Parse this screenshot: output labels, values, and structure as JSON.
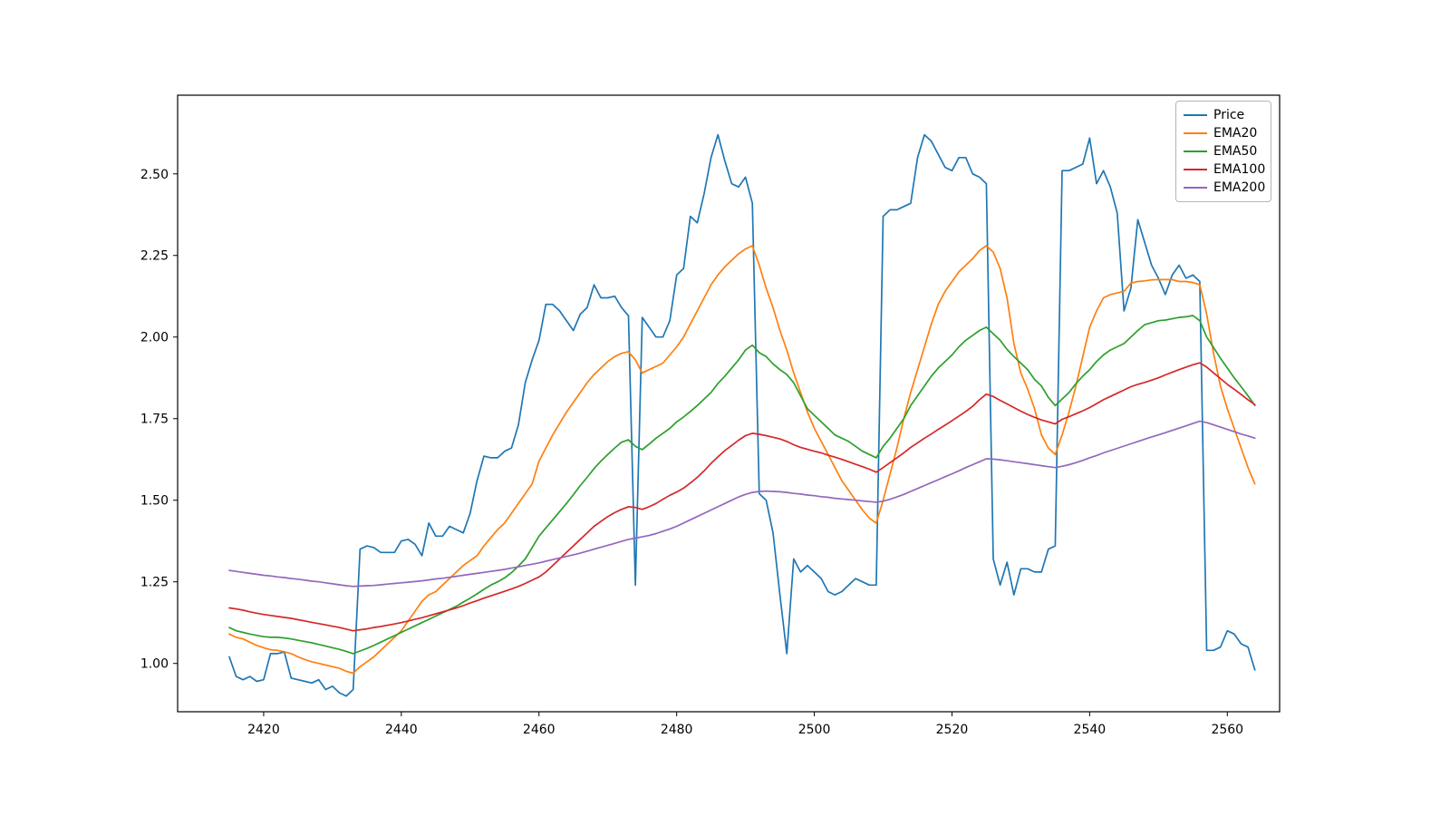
{
  "chart_data": {
    "type": "line",
    "title": "",
    "xlabel": "",
    "ylabel": "",
    "grid": false,
    "background": "#ffffff",
    "legend_position": "upper right",
    "xlim": [
      2407.5,
      2567.6
    ],
    "ylim": [
      0.852,
      2.741
    ],
    "xticks": [
      2420,
      2440,
      2460,
      2480,
      2500,
      2520,
      2540,
      2560
    ],
    "xtick_labels": [
      "2420",
      "2440",
      "2460",
      "2480",
      "2500",
      "2520",
      "2540",
      "2560"
    ],
    "yticks": [
      1.0,
      1.25,
      1.5,
      1.75,
      2.0,
      2.25,
      2.5
    ],
    "ytick_labels": [
      "1.00",
      "1.25",
      "1.50",
      "1.75",
      "2.00",
      "2.25",
      "2.50"
    ],
    "x_start": 2415,
    "x": [
      2415,
      2416,
      2417,
      2418,
      2419,
      2420,
      2421,
      2422,
      2423,
      2424,
      2425,
      2426,
      2427,
      2428,
      2429,
      2430,
      2431,
      2432,
      2433,
      2434,
      2435,
      2436,
      2437,
      2438,
      2439,
      2440,
      2441,
      2442,
      2443,
      2444,
      2445,
      2446,
      2447,
      2448,
      2449,
      2450,
      2451,
      2452,
      2453,
      2454,
      2455,
      2456,
      2457,
      2458,
      2459,
      2460,
      2461,
      2462,
      2463,
      2464,
      2465,
      2466,
      2467,
      2468,
      2469,
      2470,
      2471,
      2472,
      2473,
      2474,
      2475,
      2476,
      2477,
      2478,
      2479,
      2480,
      2481,
      2482,
      2483,
      2484,
      2485,
      2486,
      2487,
      2488,
      2489,
      2490,
      2491,
      2492,
      2493,
      2494,
      2495,
      2496,
      2497,
      2498,
      2499,
      2500,
      2501,
      2502,
      2503,
      2504,
      2505,
      2506,
      2507,
      2508,
      2509,
      2510,
      2511,
      2512,
      2513,
      2514,
      2515,
      2516,
      2517,
      2518,
      2519,
      2520,
      2521,
      2522,
      2523,
      2524,
      2525,
      2526,
      2527,
      2528,
      2529,
      2530,
      2531,
      2532,
      2533,
      2534,
      2535,
      2536,
      2537,
      2538,
      2539,
      2540,
      2541,
      2542,
      2543,
      2544,
      2545,
      2546,
      2547,
      2548,
      2549,
      2550,
      2551,
      2552,
      2553,
      2554,
      2555,
      2556,
      2557,
      2558,
      2559,
      2560,
      2561,
      2562,
      2563,
      2564
    ],
    "series": [
      {
        "name": "Price",
        "color": "#1f77b4",
        "values": [
          1.02,
          0.96,
          0.95,
          0.96,
          0.945,
          0.95,
          1.03,
          1.03,
          1.035,
          0.955,
          0.95,
          0.945,
          0.94,
          0.95,
          0.92,
          0.93,
          0.91,
          0.9,
          0.92,
          1.35,
          1.36,
          1.355,
          1.34,
          1.34,
          1.34,
          1.375,
          1.38,
          1.365,
          1.33,
          1.43,
          1.39,
          1.39,
          1.42,
          1.41,
          1.4,
          1.46,
          1.56,
          1.635,
          1.63,
          1.63,
          1.65,
          1.66,
          1.73,
          1.86,
          1.93,
          1.99,
          2.1,
          2.1,
          2.08,
          2.05,
          2.02,
          2.07,
          2.09,
          2.16,
          2.12,
          2.12,
          2.125,
          2.09,
          2.065,
          1.24,
          2.06,
          2.03,
          2.0,
          2.0,
          2.05,
          2.19,
          2.21,
          2.37,
          2.35,
          2.44,
          2.55,
          2.62,
          2.54,
          2.47,
          2.46,
          2.49,
          2.41,
          1.52,
          1.5,
          1.4,
          1.21,
          1.03,
          1.32,
          1.28,
          1.3,
          1.28,
          1.26,
          1.22,
          1.21,
          1.22,
          1.24,
          1.26,
          1.25,
          1.24,
          1.24,
          2.37,
          2.39,
          2.39,
          2.4,
          2.41,
          2.55,
          2.62,
          2.6,
          2.56,
          2.52,
          2.51,
          2.55,
          2.55,
          2.5,
          2.49,
          2.47,
          1.32,
          1.24,
          1.31,
          1.21,
          1.29,
          1.29,
          1.28,
          1.28,
          1.35,
          1.36,
          2.51,
          2.51,
          2.52,
          2.53,
          2.61,
          2.47,
          2.51,
          2.46,
          2.38,
          2.08,
          2.15,
          2.36,
          2.29,
          2.22,
          2.18,
          2.13,
          2.19,
          2.22,
          2.18,
          2.19,
          2.17,
          1.04,
          1.04,
          1.05,
          1.1,
          1.09,
          1.06,
          1.05,
          0.98
        ]
      },
      {
        "name": "EMA20",
        "color": "#ff7f0e",
        "values": [
          1.09,
          1.08,
          1.075,
          1.065,
          1.055,
          1.048,
          1.042,
          1.04,
          1.036,
          1.03,
          1.02,
          1.012,
          1.005,
          1.0,
          0.995,
          0.99,
          0.985,
          0.976,
          0.97,
          0.99,
          1.005,
          1.02,
          1.04,
          1.06,
          1.08,
          1.1,
          1.13,
          1.16,
          1.19,
          1.21,
          1.22,
          1.24,
          1.26,
          1.28,
          1.3,
          1.315,
          1.33,
          1.36,
          1.385,
          1.41,
          1.43,
          1.46,
          1.49,
          1.52,
          1.55,
          1.62,
          1.66,
          1.7,
          1.735,
          1.77,
          1.8,
          1.83,
          1.86,
          1.885,
          1.905,
          1.925,
          1.94,
          1.95,
          1.955,
          1.93,
          1.89,
          1.9,
          1.91,
          1.92,
          1.945,
          1.97,
          2.0,
          2.04,
          2.08,
          2.12,
          2.16,
          2.19,
          2.215,
          2.235,
          2.255,
          2.27,
          2.28,
          2.22,
          2.15,
          2.09,
          2.02,
          1.96,
          1.89,
          1.83,
          1.77,
          1.72,
          1.68,
          1.64,
          1.6,
          1.56,
          1.53,
          1.5,
          1.47,
          1.445,
          1.43,
          1.5,
          1.58,
          1.66,
          1.75,
          1.83,
          1.9,
          1.97,
          2.04,
          2.1,
          2.14,
          2.17,
          2.2,
          2.22,
          2.24,
          2.265,
          2.28,
          2.26,
          2.21,
          2.12,
          1.98,
          1.89,
          1.84,
          1.78,
          1.7,
          1.66,
          1.64,
          1.7,
          1.77,
          1.85,
          1.94,
          2.03,
          2.08,
          2.12,
          2.13,
          2.135,
          2.14,
          2.165,
          2.17,
          2.172,
          2.175,
          2.176,
          2.176,
          2.176,
          2.17,
          2.17,
          2.167,
          2.16,
          2.07,
          1.95,
          1.85,
          1.78,
          1.72,
          1.66,
          1.6,
          1.55
        ]
      },
      {
        "name": "EMA50",
        "color": "#2ca02c",
        "values": [
          1.11,
          1.1,
          1.095,
          1.09,
          1.086,
          1.082,
          1.08,
          1.08,
          1.078,
          1.075,
          1.071,
          1.067,
          1.063,
          1.058,
          1.053,
          1.048,
          1.043,
          1.037,
          1.03,
          1.038,
          1.046,
          1.055,
          1.065,
          1.075,
          1.085,
          1.095,
          1.105,
          1.115,
          1.125,
          1.135,
          1.145,
          1.155,
          1.165,
          1.175,
          1.188,
          1.2,
          1.213,
          1.227,
          1.24,
          1.25,
          1.262,
          1.278,
          1.298,
          1.32,
          1.355,
          1.39,
          1.415,
          1.44,
          1.465,
          1.49,
          1.517,
          1.545,
          1.57,
          1.597,
          1.62,
          1.64,
          1.66,
          1.678,
          1.685,
          1.665,
          1.655,
          1.672,
          1.69,
          1.705,
          1.72,
          1.74,
          1.755,
          1.772,
          1.79,
          1.81,
          1.83,
          1.858,
          1.88,
          1.905,
          1.93,
          1.96,
          1.975,
          1.952,
          1.94,
          1.918,
          1.9,
          1.885,
          1.86,
          1.82,
          1.78,
          1.76,
          1.74,
          1.72,
          1.7,
          1.69,
          1.68,
          1.665,
          1.65,
          1.64,
          1.63,
          1.665,
          1.69,
          1.72,
          1.75,
          1.79,
          1.82,
          1.85,
          1.88,
          1.905,
          1.925,
          1.945,
          1.97,
          1.99,
          2.005,
          2.02,
          2.03,
          2.01,
          1.99,
          1.962,
          1.94,
          1.92,
          1.9,
          1.87,
          1.85,
          1.815,
          1.79,
          1.81,
          1.83,
          1.857,
          1.88,
          1.9,
          1.925,
          1.945,
          1.96,
          1.97,
          1.98,
          2.0,
          2.02,
          2.038,
          2.044,
          2.05,
          2.052,
          2.056,
          2.06,
          2.062,
          2.066,
          2.05,
          2.0,
          1.968,
          1.935,
          1.905,
          1.875,
          1.848,
          1.82,
          1.79
        ]
      },
      {
        "name": "EMA100",
        "color": "#d62728",
        "values": [
          1.17,
          1.167,
          1.163,
          1.158,
          1.154,
          1.15,
          1.147,
          1.144,
          1.141,
          1.138,
          1.134,
          1.13,
          1.126,
          1.122,
          1.118,
          1.114,
          1.11,
          1.105,
          1.1,
          1.103,
          1.106,
          1.11,
          1.113,
          1.117,
          1.121,
          1.125,
          1.13,
          1.135,
          1.14,
          1.146,
          1.152,
          1.158,
          1.164,
          1.17,
          1.177,
          1.185,
          1.192,
          1.2,
          1.207,
          1.214,
          1.221,
          1.228,
          1.236,
          1.245,
          1.255,
          1.265,
          1.28,
          1.3,
          1.32,
          1.34,
          1.36,
          1.38,
          1.4,
          1.42,
          1.435,
          1.45,
          1.462,
          1.472,
          1.48,
          1.478,
          1.472,
          1.48,
          1.49,
          1.503,
          1.515,
          1.525,
          1.537,
          1.553,
          1.57,
          1.59,
          1.613,
          1.633,
          1.652,
          1.668,
          1.684,
          1.698,
          1.705,
          1.702,
          1.698,
          1.693,
          1.688,
          1.68,
          1.67,
          1.662,
          1.656,
          1.65,
          1.645,
          1.638,
          1.632,
          1.625,
          1.618,
          1.61,
          1.603,
          1.595,
          1.586,
          1.6,
          1.615,
          1.63,
          1.645,
          1.662,
          1.676,
          1.69,
          1.703,
          1.717,
          1.73,
          1.744,
          1.758,
          1.772,
          1.788,
          1.808,
          1.825,
          1.818,
          1.806,
          1.795,
          1.784,
          1.773,
          1.763,
          1.754,
          1.746,
          1.74,
          1.734,
          1.748,
          1.756,
          1.765,
          1.774,
          1.784,
          1.796,
          1.808,
          1.818,
          1.828,
          1.838,
          1.848,
          1.855,
          1.861,
          1.868,
          1.875,
          1.884,
          1.892,
          1.9,
          1.908,
          1.915,
          1.921,
          1.908,
          1.89,
          1.873,
          1.855,
          1.84,
          1.824,
          1.808,
          1.793
        ]
      },
      {
        "name": "EMA200",
        "color": "#9467bd",
        "values": [
          1.285,
          1.282,
          1.279,
          1.276,
          1.273,
          1.27,
          1.268,
          1.265,
          1.263,
          1.26,
          1.258,
          1.255,
          1.252,
          1.25,
          1.247,
          1.244,
          1.241,
          1.238,
          1.236,
          1.237,
          1.238,
          1.239,
          1.241,
          1.243,
          1.245,
          1.247,
          1.249,
          1.251,
          1.253,
          1.256,
          1.259,
          1.261,
          1.264,
          1.267,
          1.27,
          1.273,
          1.276,
          1.279,
          1.282,
          1.285,
          1.288,
          1.292,
          1.296,
          1.3,
          1.304,
          1.308,
          1.313,
          1.318,
          1.323,
          1.328,
          1.333,
          1.338,
          1.344,
          1.35,
          1.356,
          1.362,
          1.368,
          1.374,
          1.38,
          1.384,
          1.388,
          1.392,
          1.398,
          1.405,
          1.412,
          1.42,
          1.43,
          1.44,
          1.45,
          1.46,
          1.47,
          1.48,
          1.49,
          1.5,
          1.51,
          1.518,
          1.524,
          1.527,
          1.528,
          1.527,
          1.526,
          1.524,
          1.521,
          1.519,
          1.516,
          1.514,
          1.511,
          1.509,
          1.506,
          1.504,
          1.502,
          1.5,
          1.498,
          1.496,
          1.494,
          1.497,
          1.503,
          1.51,
          1.518,
          1.527,
          1.536,
          1.545,
          1.554,
          1.563,
          1.572,
          1.581,
          1.59,
          1.6,
          1.609,
          1.618,
          1.627,
          1.626,
          1.624,
          1.621,
          1.618,
          1.615,
          1.612,
          1.609,
          1.606,
          1.603,
          1.6,
          1.604,
          1.609,
          1.615,
          1.622,
          1.63,
          1.637,
          1.645,
          1.652,
          1.659,
          1.666,
          1.673,
          1.68,
          1.687,
          1.694,
          1.7,
          1.707,
          1.714,
          1.721,
          1.728,
          1.735,
          1.742,
          1.738,
          1.731,
          1.724,
          1.717,
          1.71,
          1.703,
          1.697,
          1.69
        ]
      }
    ]
  }
}
